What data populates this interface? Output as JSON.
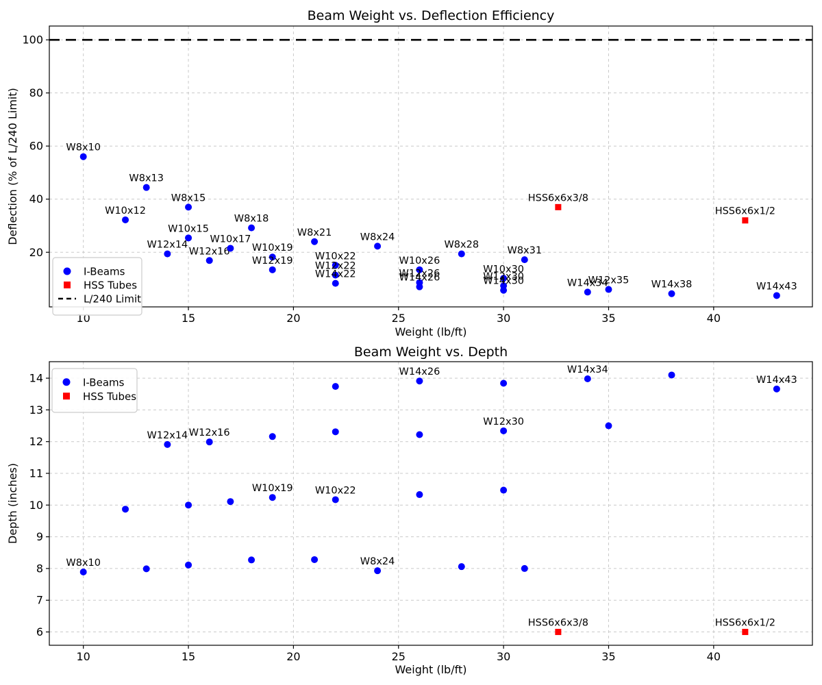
{
  "figure": {
    "background": "#ffffff",
    "text_color": "#000000",
    "grid_color": "#c9c9c9",
    "spine_color": "#000000"
  },
  "chart_data": [
    {
      "type": "scatter",
      "title": "Beam Weight vs. Deflection Efficiency",
      "xlabel": "Weight (lb/ft)",
      "ylabel": "Deflection (% of L/240 Limit)",
      "xlim": [
        8.38,
        44.7
      ],
      "ylim": [
        -0.57,
        105.2
      ],
      "xticks": [
        10,
        15,
        20,
        25,
        30,
        35,
        40
      ],
      "yticks": [
        20,
        40,
        60,
        80,
        100
      ],
      "grid": true,
      "legend": {
        "position": "lower-left",
        "items": [
          {
            "label": "I-Beams",
            "marker": "circle",
            "color": "#0000ff"
          },
          {
            "label": "HSS Tubes",
            "marker": "square",
            "color": "#ff0000"
          },
          {
            "label": "L/240 Limit",
            "marker": "dashed-line",
            "color": "#000000"
          }
        ]
      },
      "limit_line": {
        "y": 100,
        "color": "#000000",
        "style": "dashed"
      },
      "series": [
        {
          "name": "I-Beams",
          "marker": "circle",
          "color": "#0000ff",
          "points": [
            {
              "label": "W8x10",
              "x": 10,
              "y": 56.0,
              "annotated": true
            },
            {
              "label": "W10x12",
              "x": 12,
              "y": 32.2,
              "annotated": true
            },
            {
              "label": "W8x13",
              "x": 13,
              "y": 44.4,
              "annotated": true
            },
            {
              "label": "W12x14",
              "x": 14,
              "y": 19.4,
              "annotated": true
            },
            {
              "label": "W8x15",
              "x": 15,
              "y": 37.0,
              "annotated": true
            },
            {
              "label": "W10x15",
              "x": 15,
              "y": 25.4,
              "annotated": true
            },
            {
              "label": "W12x16",
              "x": 16,
              "y": 16.9,
              "annotated": true
            },
            {
              "label": "W10x17",
              "x": 17,
              "y": 21.5,
              "annotated": true
            },
            {
              "label": "W8x18",
              "x": 18,
              "y": 29.2,
              "annotated": true
            },
            {
              "label": "W10x19",
              "x": 19,
              "y": 18.2,
              "annotated": true
            },
            {
              "label": "W12x19",
              "x": 19,
              "y": 13.4,
              "annotated": true
            },
            {
              "label": "W8x21",
              "x": 21,
              "y": 24.0,
              "annotated": true
            },
            {
              "label": "W10x22",
              "x": 22,
              "y": 15.1,
              "annotated": true
            },
            {
              "label": "W12x22",
              "x": 22,
              "y": 11.4,
              "annotated": true
            },
            {
              "label": "W14x22",
              "x": 22,
              "y": 8.3,
              "annotated": true
            },
            {
              "label": "W8x24",
              "x": 24,
              "y": 22.3,
              "annotated": true
            },
            {
              "label": "W10x26",
              "x": 26,
              "y": 13.4,
              "annotated": true
            },
            {
              "label": "W12x26",
              "x": 26,
              "y": 8.6,
              "annotated": true
            },
            {
              "label": "W14x26",
              "x": 26,
              "y": 7.0,
              "annotated": true
            },
            {
              "label": "W8x28",
              "x": 28,
              "y": 19.4,
              "annotated": true
            },
            {
              "label": "W10x30",
              "x": 30,
              "y": 10.2,
              "annotated": true
            },
            {
              "label": "W12x30",
              "x": 30,
              "y": 7.4,
              "annotated": true
            },
            {
              "label": "W14x30",
              "x": 30,
              "y": 5.7,
              "annotated": true
            },
            {
              "label": "W8x31",
              "x": 31,
              "y": 17.2,
              "annotated": true
            },
            {
              "label": "W14x34",
              "x": 34,
              "y": 5.0,
              "annotated": true
            },
            {
              "label": "W12x35",
              "x": 35,
              "y": 6.0,
              "annotated": true
            },
            {
              "label": "W14x38",
              "x": 38,
              "y": 4.4,
              "annotated": true
            },
            {
              "label": "W14x43",
              "x": 43,
              "y": 3.7,
              "annotated": true
            }
          ]
        },
        {
          "name": "HSS Tubes",
          "marker": "square",
          "color": "#ff0000",
          "points": [
            {
              "label": "HSS6x6x3/8",
              "x": 32.6,
              "y": 37.0,
              "annotated": true
            },
            {
              "label": "HSS6x6x1/2",
              "x": 41.5,
              "y": 32.0,
              "annotated": true
            }
          ]
        }
      ]
    },
    {
      "type": "scatter",
      "title": "Beam Weight vs. Depth",
      "xlabel": "Weight (lb/ft)",
      "ylabel": "Depth (inches)",
      "xlim": [
        8.38,
        44.7
      ],
      "ylim": [
        5.58,
        14.52
      ],
      "xticks": [
        10,
        15,
        20,
        25,
        30,
        35,
        40
      ],
      "yticks": [
        6,
        7,
        8,
        9,
        10,
        11,
        12,
        13,
        14
      ],
      "grid": true,
      "legend": {
        "position": "upper-left",
        "items": [
          {
            "label": "I-Beams",
            "marker": "circle",
            "color": "#0000ff"
          },
          {
            "label": "HSS Tubes",
            "marker": "square",
            "color": "#ff0000"
          }
        ]
      },
      "series": [
        {
          "name": "I-Beams",
          "marker": "circle",
          "color": "#0000ff",
          "points": [
            {
              "label": "W8x10",
              "x": 10,
              "y": 7.89,
              "annotated": true
            },
            {
              "label": "W10x12",
              "x": 12,
              "y": 9.87,
              "annotated": false
            },
            {
              "label": "W8x13",
              "x": 13,
              "y": 7.99,
              "annotated": false
            },
            {
              "label": "W12x14",
              "x": 14,
              "y": 11.91,
              "annotated": true
            },
            {
              "label": "W8x15",
              "x": 15,
              "y": 8.11,
              "annotated": false
            },
            {
              "label": "W10x15",
              "x": 15,
              "y": 10.0,
              "annotated": false
            },
            {
              "label": "W12x16",
              "x": 16,
              "y": 11.99,
              "annotated": true
            },
            {
              "label": "W10x17",
              "x": 17,
              "y": 10.11,
              "annotated": false
            },
            {
              "label": "W8x18",
              "x": 18,
              "y": 8.27,
              "annotated": false
            },
            {
              "label": "W10x19",
              "x": 19,
              "y": 10.24,
              "annotated": true
            },
            {
              "label": "W12x19",
              "x": 19,
              "y": 12.16,
              "annotated": false
            },
            {
              "label": "W8x21",
              "x": 21,
              "y": 8.28,
              "annotated": false
            },
            {
              "label": "W10x22",
              "x": 22,
              "y": 10.17,
              "annotated": true
            },
            {
              "label": "W12x22",
              "x": 22,
              "y": 12.31,
              "annotated": false
            },
            {
              "label": "W14x22",
              "x": 22,
              "y": 13.74,
              "annotated": false
            },
            {
              "label": "W8x24",
              "x": 24,
              "y": 7.93,
              "annotated": true
            },
            {
              "label": "W10x26",
              "x": 26,
              "y": 10.33,
              "annotated": false
            },
            {
              "label": "W12x26",
              "x": 26,
              "y": 12.22,
              "annotated": false
            },
            {
              "label": "W14x26",
              "x": 26,
              "y": 13.91,
              "annotated": true
            },
            {
              "label": "W8x28",
              "x": 28,
              "y": 8.06,
              "annotated": false
            },
            {
              "label": "W10x30",
              "x": 30,
              "y": 10.47,
              "annotated": false
            },
            {
              "label": "W12x30",
              "x": 30,
              "y": 12.34,
              "annotated": true
            },
            {
              "label": "W14x30",
              "x": 30,
              "y": 13.84,
              "annotated": false
            },
            {
              "label": "W8x31",
              "x": 31,
              "y": 8.0,
              "annotated": false
            },
            {
              "label": "W14x34",
              "x": 34,
              "y": 13.98,
              "annotated": true
            },
            {
              "label": "W12x35",
              "x": 35,
              "y": 12.5,
              "annotated": false
            },
            {
              "label": "W14x38",
              "x": 38,
              "y": 14.1,
              "annotated": false
            },
            {
              "label": "W14x43",
              "x": 43,
              "y": 13.66,
              "annotated": true
            }
          ]
        },
        {
          "name": "HSS Tubes",
          "marker": "square",
          "color": "#ff0000",
          "points": [
            {
              "label": "HSS6x6x3/8",
              "x": 32.6,
              "y": 6.0,
              "annotated": true
            },
            {
              "label": "HSS6x6x1/2",
              "x": 41.5,
              "y": 6.0,
              "annotated": true
            }
          ]
        }
      ]
    }
  ]
}
